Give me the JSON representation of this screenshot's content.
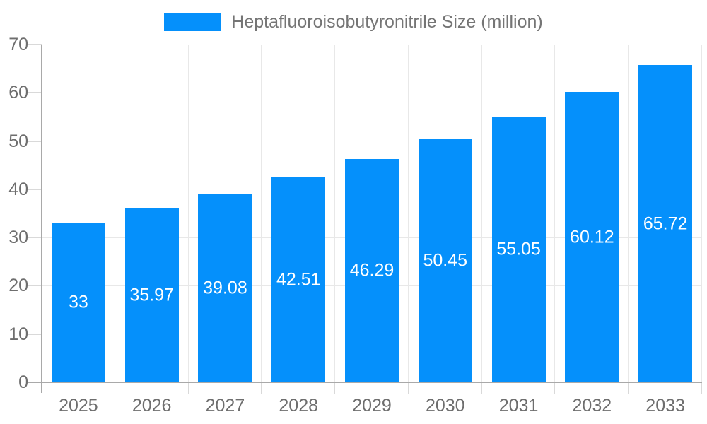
{
  "chart_data": {
    "type": "bar",
    "legend": "Heptafluoroisobutyronitrile Size (million)",
    "legend_position": "top",
    "categories": [
      "2025",
      "2026",
      "2027",
      "2028",
      "2029",
      "2030",
      "2031",
      "2032",
      "2033"
    ],
    "values": [
      33,
      35.97,
      39.08,
      42.51,
      46.29,
      50.45,
      55.05,
      60.12,
      65.72
    ],
    "value_labels": [
      "33",
      "35.97",
      "39.08",
      "42.51",
      "46.29",
      "50.45",
      "55.05",
      "60.12",
      "65.72"
    ],
    "xlabel": "",
    "ylabel": "",
    "ylim": [
      0,
      70
    ],
    "y_ticks": [
      0,
      10,
      20,
      30,
      40,
      50,
      60,
      70
    ],
    "grid": true,
    "colors": {
      "bar": "#0590fb",
      "grid": "#e8e8e8",
      "axis": "#a9a9a9",
      "tick": "#d9d9d9",
      "axis_label": "#6e6e6e",
      "legend_label": "#757575",
      "value_label": "#ffffff",
      "background": "#ffffff"
    }
  }
}
